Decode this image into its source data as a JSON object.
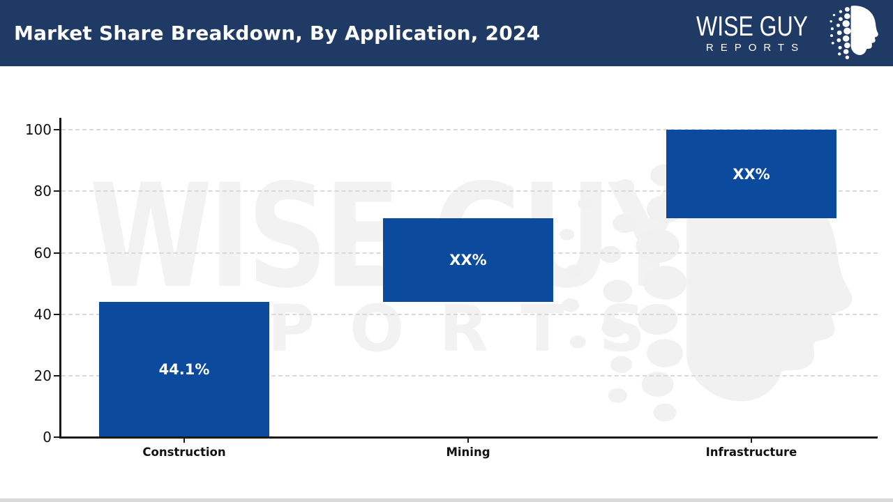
{
  "header": {
    "title": "Market Share Breakdown, By Application, 2024",
    "logo": {
      "line1": "WISE GUY",
      "line2": "REPORTS"
    }
  },
  "watermark": {
    "line1": "WISE GUY",
    "line2": "REPORTS"
  },
  "chart_data": {
    "type": "bar",
    "subtype": "floating-waterfall",
    "title": "Market Share Breakdown, By Application, 2024",
    "categories": [
      "Construction",
      "Mining",
      "Infrastructure"
    ],
    "segments": [
      {
        "category": "Construction",
        "start": 0,
        "end": 44.1,
        "label": "44.1%"
      },
      {
        "category": "Mining",
        "start": 44.1,
        "end": 71.3,
        "label": "XX%"
      },
      {
        "category": "Infrastructure",
        "start": 71.3,
        "end": 100,
        "label": "XX%"
      }
    ],
    "ylim": [
      0,
      100
    ],
    "yticks": [
      0,
      20,
      40,
      60,
      80,
      100
    ],
    "xlabel": "",
    "ylabel": "",
    "grid": "horizontal-dashed",
    "legend": "none",
    "bar_color": "#0c4a9e",
    "bar_label_color": "#ffffff",
    "header_color": "#203a66",
    "grid_color": "#d9d9d9"
  }
}
